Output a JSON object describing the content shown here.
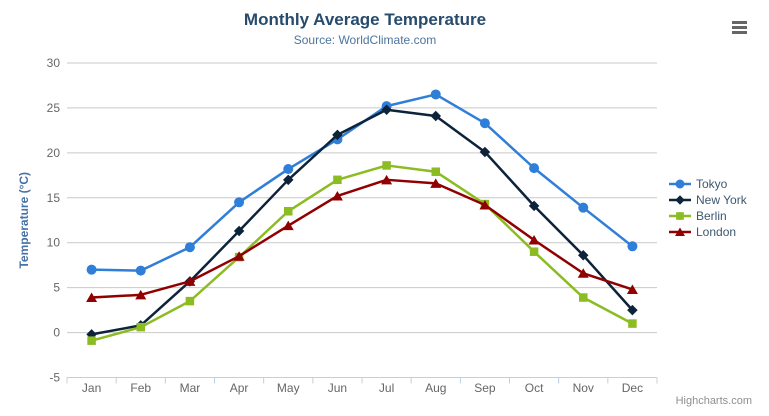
{
  "title": "Monthly Average Temperature",
  "subtitle": "Source: WorldClimate.com",
  "credit": "Highcharts.com",
  "export_button": {
    "icon": "hamburger-icon"
  },
  "colors": {
    "background": "#ffffff",
    "title": "#274b6d",
    "subtitle": "#4d759e",
    "axis_title": "#4572a7",
    "axis_labels": "#666666",
    "legend_text": "#3e576f",
    "gridline": "#c9c9c9",
    "axis_line": "#c0d0e0",
    "credit": "#8f8f8f",
    "menu_icon": "#666666"
  },
  "chart_data": {
    "type": "line",
    "title": "Monthly Average Temperature",
    "subtitle": "Source: WorldClimate.com",
    "xlabel": "",
    "ylabel": "Temperature (°C)",
    "ylim": [
      -5,
      30
    ],
    "yticks": [
      -5,
      0,
      5,
      10,
      15,
      20,
      25,
      30
    ],
    "grid": true,
    "legend_position": "right",
    "categories": [
      "Jan",
      "Feb",
      "Mar",
      "Apr",
      "May",
      "Jun",
      "Jul",
      "Aug",
      "Sep",
      "Oct",
      "Nov",
      "Dec"
    ],
    "series": [
      {
        "name": "Tokyo",
        "color": "#2f7ed8",
        "marker": "circle",
        "values": [
          7.0,
          6.9,
          9.5,
          14.5,
          18.2,
          21.5,
          25.2,
          26.5,
          23.3,
          18.3,
          13.9,
          9.6
        ]
      },
      {
        "name": "New York",
        "color": "#0d233a",
        "marker": "diamond",
        "values": [
          -0.2,
          0.8,
          5.7,
          11.3,
          17.0,
          22.0,
          24.8,
          24.1,
          20.1,
          14.1,
          8.6,
          2.5
        ]
      },
      {
        "name": "Berlin",
        "color": "#8bbc21",
        "marker": "square",
        "values": [
          -0.9,
          0.6,
          3.5,
          8.4,
          13.5,
          17.0,
          18.6,
          17.9,
          14.3,
          9.0,
          3.9,
          1.0
        ]
      },
      {
        "name": "London",
        "color": "#910000",
        "marker": "triangle",
        "values": [
          3.9,
          4.2,
          5.7,
          8.5,
          11.9,
          15.2,
          17.0,
          16.6,
          14.2,
          10.3,
          6.6,
          4.8
        ]
      }
    ]
  }
}
